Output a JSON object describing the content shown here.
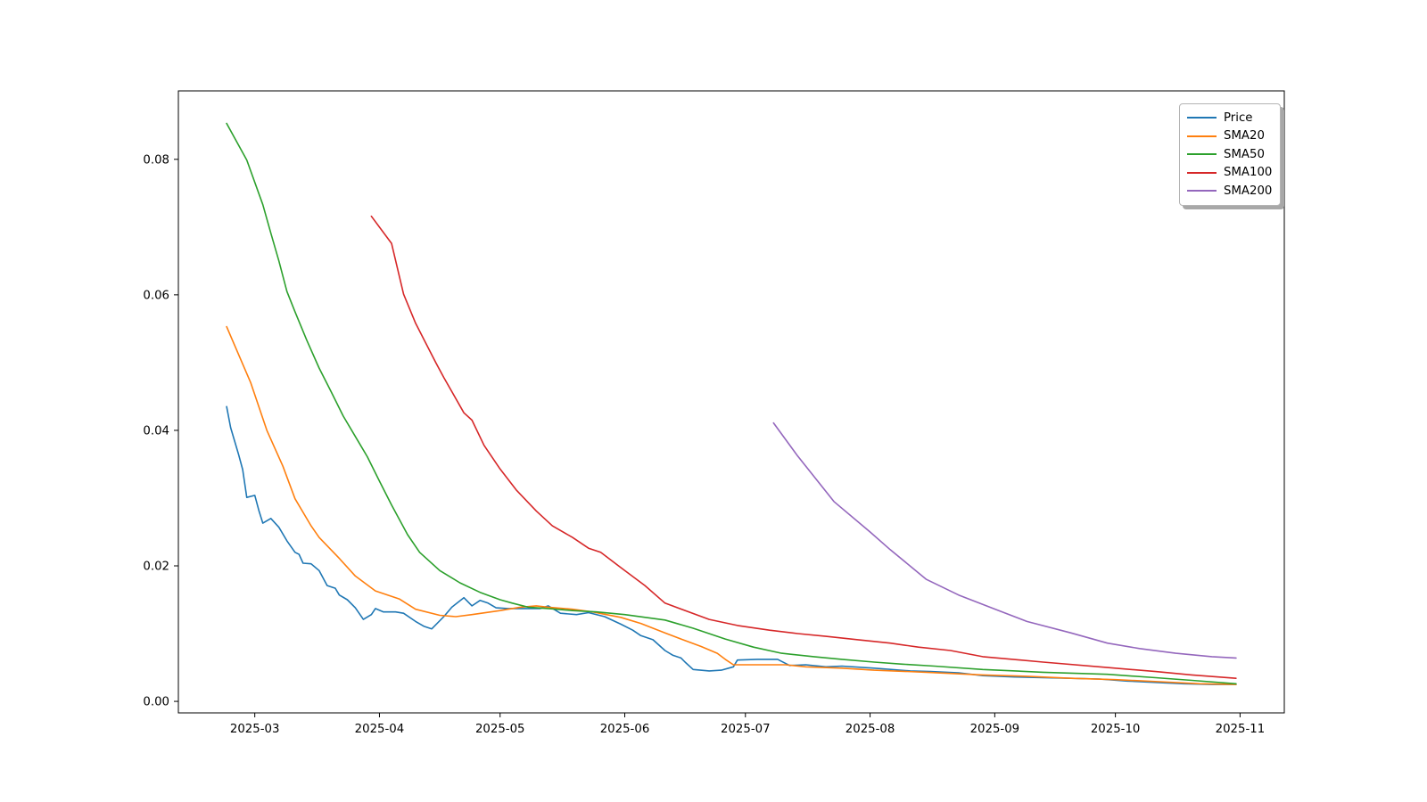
{
  "figure": {
    "background": "#ffffff",
    "title": ""
  },
  "axes": {
    "x_tick_labels": [
      "2025-03",
      "2025-04",
      "2025-05",
      "2025-06",
      "2025-07",
      "2025-08",
      "2025-09",
      "2025-10",
      "2025-11"
    ],
    "y_tick_labels": [
      "0.00",
      "0.02",
      "0.04",
      "0.06",
      "0.08"
    ],
    "spine_color": "#000000",
    "tick_color": "#000000"
  },
  "chart_data": {
    "type": "line",
    "title": "",
    "xlabel": "",
    "ylabel": "",
    "grid": false,
    "legend_position": "upper right",
    "xlim": [
      "2025-02-10",
      "2025-11-12"
    ],
    "ylim": [
      -0.0017,
      0.0901
    ],
    "x_ticks": [
      "2025-03-01",
      "2025-04-01",
      "2025-05-01",
      "2025-06-01",
      "2025-07-01",
      "2025-08-01",
      "2025-09-01",
      "2025-10-01",
      "2025-11-01"
    ],
    "x_tick_labels": [
      "2025-03",
      "2025-04",
      "2025-05",
      "2025-06",
      "2025-07",
      "2025-08",
      "2025-09",
      "2025-10",
      "2025-11"
    ],
    "y_ticks": [
      0.0,
      0.02,
      0.04,
      0.06,
      0.08
    ],
    "y_tick_labels": [
      "0.00",
      "0.02",
      "0.04",
      "0.06",
      "0.08"
    ],
    "series": [
      {
        "name": "Price",
        "color": "#1f77b4",
        "points": [
          [
            "2025-02-22",
            0.0435
          ],
          [
            "2025-02-23",
            0.0404
          ],
          [
            "2025-02-25",
            0.0364
          ],
          [
            "2025-02-26",
            0.0342
          ],
          [
            "2025-02-27",
            0.0301
          ],
          [
            "2025-03-01",
            0.0304
          ],
          [
            "2025-03-02",
            0.0282
          ],
          [
            "2025-03-03",
            0.0263
          ],
          [
            "2025-03-05",
            0.027
          ],
          [
            "2025-03-07",
            0.0257
          ],
          [
            "2025-03-09",
            0.0237
          ],
          [
            "2025-03-11",
            0.022
          ],
          [
            "2025-03-12",
            0.0217
          ],
          [
            "2025-03-13",
            0.0204
          ],
          [
            "2025-03-15",
            0.0203
          ],
          [
            "2025-03-17",
            0.0193
          ],
          [
            "2025-03-19",
            0.0171
          ],
          [
            "2025-03-21",
            0.0167
          ],
          [
            "2025-03-22",
            0.0157
          ],
          [
            "2025-03-24",
            0.015
          ],
          [
            "2025-03-26",
            0.0138
          ],
          [
            "2025-03-28",
            0.0121
          ],
          [
            "2025-03-30",
            0.0128
          ],
          [
            "2025-03-31",
            0.0137
          ],
          [
            "2025-04-02",
            0.0132
          ],
          [
            "2025-04-05",
            0.0132
          ],
          [
            "2025-04-07",
            0.013
          ],
          [
            "2025-04-10",
            0.0118
          ],
          [
            "2025-04-12",
            0.0111
          ],
          [
            "2025-04-14",
            0.0107
          ],
          [
            "2025-04-17",
            0.0125
          ],
          [
            "2025-04-19",
            0.0139
          ],
          [
            "2025-04-22",
            0.0153
          ],
          [
            "2025-04-24",
            0.0141
          ],
          [
            "2025-04-26",
            0.0149
          ],
          [
            "2025-04-28",
            0.0145
          ],
          [
            "2025-04-30",
            0.0138
          ],
          [
            "2025-05-03",
            0.0137
          ],
          [
            "2025-05-07",
            0.0137
          ],
          [
            "2025-05-11",
            0.0137
          ],
          [
            "2025-05-13",
            0.0141
          ],
          [
            "2025-05-16",
            0.013
          ],
          [
            "2025-05-20",
            0.0128
          ],
          [
            "2025-05-23",
            0.0131
          ],
          [
            "2025-05-27",
            0.0125
          ],
          [
            "2025-05-31",
            0.0114
          ],
          [
            "2025-06-03",
            0.0105
          ],
          [
            "2025-06-05",
            0.0097
          ],
          [
            "2025-06-08",
            0.0091
          ],
          [
            "2025-06-11",
            0.0075
          ],
          [
            "2025-06-13",
            0.0068
          ],
          [
            "2025-06-15",
            0.0064
          ],
          [
            "2025-06-16",
            0.0058
          ],
          [
            "2025-06-18",
            0.0047
          ],
          [
            "2025-06-22",
            0.0045
          ],
          [
            "2025-06-25",
            0.0046
          ],
          [
            "2025-06-28",
            0.0051
          ],
          [
            "2025-06-29",
            0.0061
          ],
          [
            "2025-07-04",
            0.0062
          ],
          [
            "2025-07-09",
            0.0062
          ],
          [
            "2025-07-12",
            0.0053
          ],
          [
            "2025-07-16",
            0.0054
          ],
          [
            "2025-07-21",
            0.0051
          ],
          [
            "2025-07-25",
            0.0052
          ],
          [
            "2025-08-02",
            0.0049
          ],
          [
            "2025-08-11",
            0.0045
          ],
          [
            "2025-08-16",
            0.0044
          ],
          [
            "2025-08-23",
            0.0042
          ],
          [
            "2025-08-29",
            0.0038
          ],
          [
            "2025-09-06",
            0.0036
          ],
          [
            "2025-09-13",
            0.0035
          ],
          [
            "2025-09-20",
            0.0034
          ],
          [
            "2025-09-27",
            0.0033
          ],
          [
            "2025-10-04",
            0.003
          ],
          [
            "2025-10-11",
            0.0028
          ],
          [
            "2025-10-18",
            0.0026
          ],
          [
            "2025-10-25",
            0.0025
          ],
          [
            "2025-10-31",
            0.0025
          ]
        ]
      },
      {
        "name": "SMA20",
        "color": "#ff7f0e",
        "points": [
          [
            "2025-02-22",
            0.0553
          ],
          [
            "2025-02-28",
            0.047
          ],
          [
            "2025-03-04",
            0.04
          ],
          [
            "2025-03-08",
            0.0347
          ],
          [
            "2025-03-11",
            0.0299
          ],
          [
            "2025-03-15",
            0.0259
          ],
          [
            "2025-03-17",
            0.0242
          ],
          [
            "2025-03-22",
            0.0211
          ],
          [
            "2025-03-26",
            0.0185
          ],
          [
            "2025-03-31",
            0.0163
          ],
          [
            "2025-04-06",
            0.0151
          ],
          [
            "2025-04-10",
            0.0136
          ],
          [
            "2025-04-16",
            0.0127
          ],
          [
            "2025-04-20",
            0.0125
          ],
          [
            "2025-04-24",
            0.0128
          ],
          [
            "2025-05-01",
            0.0134
          ],
          [
            "2025-05-06",
            0.0139
          ],
          [
            "2025-05-10",
            0.0141
          ],
          [
            "2025-05-13",
            0.0139
          ],
          [
            "2025-05-19",
            0.0136
          ],
          [
            "2025-05-24",
            0.0132
          ],
          [
            "2025-05-31",
            0.0124
          ],
          [
            "2025-06-05",
            0.0115
          ],
          [
            "2025-06-11",
            0.0101
          ],
          [
            "2025-06-15",
            0.0092
          ],
          [
            "2025-06-20",
            0.0081
          ],
          [
            "2025-06-24",
            0.0071
          ],
          [
            "2025-06-26",
            0.0062
          ],
          [
            "2025-06-28",
            0.0054
          ],
          [
            "2025-07-06",
            0.0054
          ],
          [
            "2025-07-11",
            0.0054
          ],
          [
            "2025-07-16",
            0.0051
          ],
          [
            "2025-07-25",
            0.0049
          ],
          [
            "2025-08-02",
            0.0046
          ],
          [
            "2025-08-15",
            0.0043
          ],
          [
            "2025-08-29",
            0.0039
          ],
          [
            "2025-09-09",
            0.0037
          ],
          [
            "2025-09-20",
            0.0034
          ],
          [
            "2025-10-01",
            0.0032
          ],
          [
            "2025-10-12",
            0.0029
          ],
          [
            "2025-10-22",
            0.0026
          ],
          [
            "2025-10-31",
            0.0025
          ]
        ]
      },
      {
        "name": "SMA50",
        "color": "#2ca02c",
        "points": [
          [
            "2025-02-22",
            0.0853
          ],
          [
            "2025-02-27",
            0.0799
          ],
          [
            "2025-03-03",
            0.0733
          ],
          [
            "2025-03-05",
            0.0691
          ],
          [
            "2025-03-07",
            0.065
          ],
          [
            "2025-03-09",
            0.0605
          ],
          [
            "2025-03-11",
            0.0575
          ],
          [
            "2025-03-14",
            0.0532
          ],
          [
            "2025-03-17",
            0.0492
          ],
          [
            "2025-03-20",
            0.0457
          ],
          [
            "2025-03-23",
            0.0421
          ],
          [
            "2025-03-26",
            0.0391
          ],
          [
            "2025-03-29",
            0.0361
          ],
          [
            "2025-04-01",
            0.0325
          ],
          [
            "2025-04-04",
            0.029
          ],
          [
            "2025-04-08",
            0.0246
          ],
          [
            "2025-04-11",
            0.022
          ],
          [
            "2025-04-16",
            0.0193
          ],
          [
            "2025-04-21",
            0.0175
          ],
          [
            "2025-04-26",
            0.0161
          ],
          [
            "2025-05-01",
            0.015
          ],
          [
            "2025-05-04",
            0.0145
          ],
          [
            "2025-05-08",
            0.0139
          ],
          [
            "2025-05-13",
            0.0137
          ],
          [
            "2025-05-19",
            0.0134
          ],
          [
            "2025-05-25",
            0.0132
          ],
          [
            "2025-06-01",
            0.0128
          ],
          [
            "2025-06-11",
            0.012
          ],
          [
            "2025-06-18",
            0.0108
          ],
          [
            "2025-06-26",
            0.0092
          ],
          [
            "2025-07-03",
            0.008
          ],
          [
            "2025-07-10",
            0.0071
          ],
          [
            "2025-07-18",
            0.0066
          ],
          [
            "2025-07-25",
            0.0062
          ],
          [
            "2025-08-02",
            0.0058
          ],
          [
            "2025-08-09",
            0.0055
          ],
          [
            "2025-08-17",
            0.0052
          ],
          [
            "2025-08-29",
            0.0047
          ],
          [
            "2025-09-13",
            0.0043
          ],
          [
            "2025-09-29",
            0.004
          ],
          [
            "2025-10-11",
            0.0035
          ],
          [
            "2025-10-20",
            0.0031
          ],
          [
            "2025-10-31",
            0.0026
          ]
        ]
      },
      {
        "name": "SMA100",
        "color": "#d62728",
        "points": [
          [
            "2025-03-30",
            0.0716
          ],
          [
            "2025-04-04",
            0.0676
          ],
          [
            "2025-04-07",
            0.0601
          ],
          [
            "2025-04-10",
            0.0558
          ],
          [
            "2025-04-15",
            0.05
          ],
          [
            "2025-04-17",
            0.0478
          ],
          [
            "2025-04-22",
            0.0426
          ],
          [
            "2025-04-24",
            0.0415
          ],
          [
            "2025-04-27",
            0.0378
          ],
          [
            "2025-05-01",
            0.0343
          ],
          [
            "2025-05-05",
            0.0312
          ],
          [
            "2025-05-10",
            0.0281
          ],
          [
            "2025-05-14",
            0.0259
          ],
          [
            "2025-05-19",
            0.0242
          ],
          [
            "2025-05-23",
            0.0226
          ],
          [
            "2025-05-26",
            0.022
          ],
          [
            "2025-06-01",
            0.0193
          ],
          [
            "2025-06-06",
            0.0171
          ],
          [
            "2025-06-11",
            0.0145
          ],
          [
            "2025-06-22",
            0.0121
          ],
          [
            "2025-06-29",
            0.0112
          ],
          [
            "2025-07-07",
            0.0105
          ],
          [
            "2025-07-14",
            0.01
          ],
          [
            "2025-07-21",
            0.0096
          ],
          [
            "2025-07-29",
            0.0091
          ],
          [
            "2025-08-06",
            0.0086
          ],
          [
            "2025-08-13",
            0.008
          ],
          [
            "2025-08-21",
            0.0075
          ],
          [
            "2025-08-29",
            0.0066
          ],
          [
            "2025-09-13",
            0.0058
          ],
          [
            "2025-09-29",
            0.005
          ],
          [
            "2025-10-11",
            0.0044
          ],
          [
            "2025-10-20",
            0.0039
          ],
          [
            "2025-10-31",
            0.0034
          ]
        ]
      },
      {
        "name": "SMA200",
        "color": "#9467bd",
        "points": [
          [
            "2025-07-08",
            0.0411
          ],
          [
            "2025-07-14",
            0.0362
          ],
          [
            "2025-07-23",
            0.0295
          ],
          [
            "2025-08-01",
            0.025
          ],
          [
            "2025-08-06",
            0.0224
          ],
          [
            "2025-08-15",
            0.018
          ],
          [
            "2025-08-23",
            0.0157
          ],
          [
            "2025-09-02",
            0.0134
          ],
          [
            "2025-09-09",
            0.0118
          ],
          [
            "2025-09-20",
            0.0101
          ],
          [
            "2025-09-29",
            0.0086
          ],
          [
            "2025-10-07",
            0.0078
          ],
          [
            "2025-10-16",
            0.0071
          ],
          [
            "2025-10-25",
            0.0066
          ],
          [
            "2025-10-31",
            0.0064
          ]
        ]
      }
    ]
  }
}
